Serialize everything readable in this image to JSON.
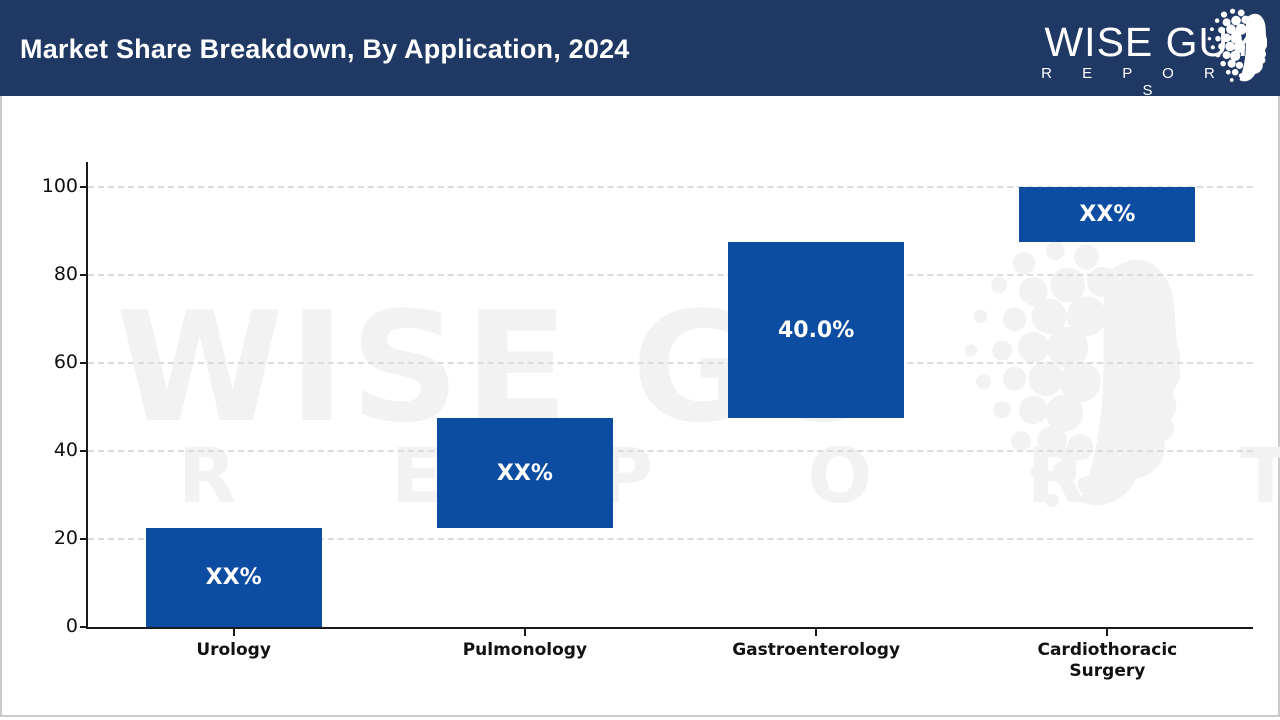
{
  "header": {
    "title": "Market Share Breakdown, By Application, 2024",
    "logo": {
      "line1": "WISE GUY",
      "line2": "R E P O R T S"
    }
  },
  "watermark": {
    "line1": "WISE GU",
    "line2": "R E P O R T S"
  },
  "chart_data": {
    "type": "bar",
    "subtype": "waterfall",
    "title": "Market Share Breakdown, By Application, 2024",
    "categories": [
      "Urology",
      "Pulmonology",
      "Gastroenterology",
      "Cardiothoracic Surgery"
    ],
    "segments": [
      {
        "category": "Urology",
        "start": 0,
        "end": 22.5,
        "value": 22.5,
        "label": "XX%"
      },
      {
        "category": "Pulmonology",
        "start": 22.5,
        "end": 47.5,
        "value": 25.0,
        "label": "XX%"
      },
      {
        "category": "Gastroenterology",
        "start": 47.5,
        "end": 87.5,
        "value": 40.0,
        "label": "40.0%"
      },
      {
        "category": "Cardiothoracic Surgery",
        "start": 87.5,
        "end": 100.0,
        "value": 12.5,
        "label": "XX%"
      }
    ],
    "ylim": [
      0,
      100
    ],
    "yticks": [
      0,
      20,
      40,
      60,
      80,
      100
    ],
    "grid": "horizontal-dashed",
    "legend": "none",
    "xlabel": "",
    "ylabel": ""
  },
  "colors": {
    "header_bg": "#1f3864",
    "bar": "#0c4da2",
    "watermark": "#f2f2f3",
    "grid": "#dcdcdc",
    "card_border": "#cbcbcb"
  }
}
